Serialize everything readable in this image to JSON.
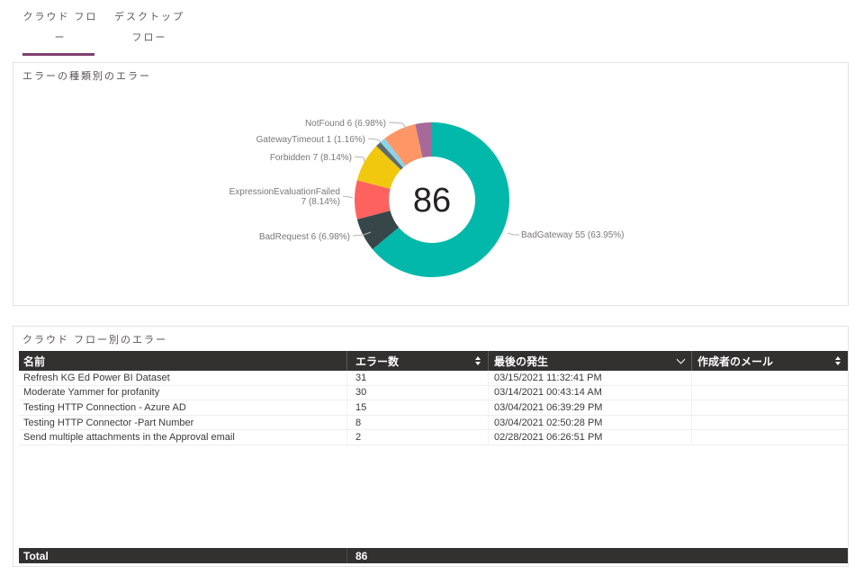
{
  "tabs": [
    {
      "label": "クラウド フロー",
      "active": true
    },
    {
      "label": "デスクトップ フロー",
      "active": false
    }
  ],
  "accent_color": "#7E4170",
  "chart_card": {
    "title": "エラーの種類別のエラー"
  },
  "chart_data": {
    "type": "pie",
    "subtype": "donut",
    "title": "エラーの種類別のエラー",
    "center_label": "86",
    "total": 86,
    "legend_position": "callout-labels",
    "segments": [
      {
        "name": "BadGateway",
        "value": 55,
        "pct": "63.95%",
        "color": "#01B8AA",
        "callout_lines": [
          "BadGateway 55 (63.95%)"
        ]
      },
      {
        "name": "BadRequest",
        "value": 6,
        "pct": "6.98%",
        "color": "#374649",
        "callout_lines": [
          "BadRequest 6 (6.98%)"
        ]
      },
      {
        "name": "ExpressionEvaluationFailed",
        "value": 7,
        "pct": "8.14%",
        "color": "#FD625E",
        "callout_lines": [
          "ExpressionEvaluationFailed",
          "7 (8.14%)"
        ]
      },
      {
        "name": "Forbidden",
        "value": 7,
        "pct": "8.14%",
        "color": "#F2C80F",
        "callout_lines": [
          "Forbidden 7 (8.14%)"
        ]
      },
      {
        "name": "GatewayTimeout",
        "value": 1,
        "pct": "1.16%",
        "color": "#5F6B6D",
        "callout_lines": [
          "GatewayTimeout 1 (1.16%)"
        ]
      },
      {
        "name": "",
        "value": 1,
        "pct": "1.16%",
        "color": "#8AD4EB",
        "callout_lines": []
      },
      {
        "name": "NotFound",
        "value": 6,
        "pct": "6.98%",
        "color": "#FE9666",
        "callout_lines": [
          "NotFound 6 (6.98%)"
        ]
      },
      {
        "name": "",
        "value": 3,
        "pct": "3.49%",
        "color": "#A66999",
        "callout_lines": []
      }
    ]
  },
  "table_card": {
    "title": "クラウド フロー別のエラー",
    "columns": [
      {
        "label": "名前",
        "sort_icon": "none"
      },
      {
        "label": "エラー数",
        "sort_icon": "updown"
      },
      {
        "label": "最後の発生",
        "sort_icon": "chevron-down"
      },
      {
        "label": "作成者のメール",
        "sort_icon": "updown"
      }
    ],
    "rows": [
      {
        "name": "Refresh KG Ed Power BI Dataset",
        "errors": "31",
        "last": "03/15/2021 11:32:41 PM",
        "email": ""
      },
      {
        "name": "Moderate Yammer for profanity",
        "errors": "30",
        "last": "03/14/2021 00:43:14 AM",
        "email": ""
      },
      {
        "name": "Testing HTTP Connection - Azure AD",
        "errors": "15",
        "last": "03/04/2021 06:39:29 PM",
        "email": ""
      },
      {
        "name": "Testing HTTP Connector -Part Number",
        "errors": "8",
        "last": "03/04/2021 02:50:28 PM",
        "email": ""
      },
      {
        "name": "Send multiple attachments in the Approval email",
        "errors": "2",
        "last": "02/28/2021 06:26:51 PM",
        "email": ""
      }
    ],
    "total_label": "Total",
    "total_value": "86"
  }
}
